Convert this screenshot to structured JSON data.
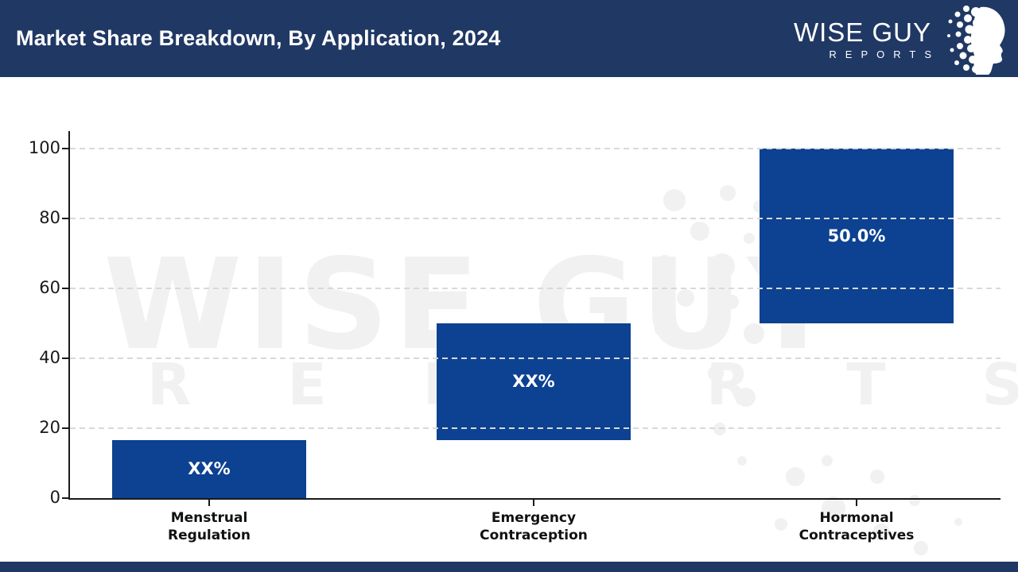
{
  "header": {
    "title": "Market Share Breakdown, By Application, 2024",
    "brand": {
      "line1": "WISE GUY",
      "line2": "REPORTS"
    }
  },
  "watermark": {
    "line1": "WISE GUY",
    "line2": "REPORTS"
  },
  "colors": {
    "header_bg": "#203864",
    "footer_bg": "#203864",
    "bar": "#0D4191",
    "grid": "#D9D9D9",
    "watermark": "#F1F1F1",
    "bar_label": "#FFFFFF",
    "axis": "#1A1A1A"
  },
  "chart_data": {
    "type": "bar",
    "variant": "waterfall-stacked",
    "title": "Market Share Breakdown, By Application, 2024",
    "categories": [
      "Menstrual\nRegulation",
      "Emergency\nContraception",
      "Hormonal\nContraceptives"
    ],
    "segments": [
      {
        "category": "Menstrual Regulation",
        "start": 0,
        "end": 16.7,
        "label": "XX%"
      },
      {
        "category": "Emergency Contraception",
        "start": 16.7,
        "end": 50.0,
        "label": "XX%"
      },
      {
        "category": "Hormonal Contraceptives",
        "start": 50.0,
        "end": 100.0,
        "label": "50.0%"
      }
    ],
    "yticks": [
      0,
      20,
      40,
      60,
      80,
      100
    ],
    "ylim": [
      0,
      105
    ],
    "xlabel": "",
    "ylabel": "",
    "grid": {
      "horizontal": true,
      "style": "dashed",
      "over_bars": true
    },
    "legend": "none"
  }
}
